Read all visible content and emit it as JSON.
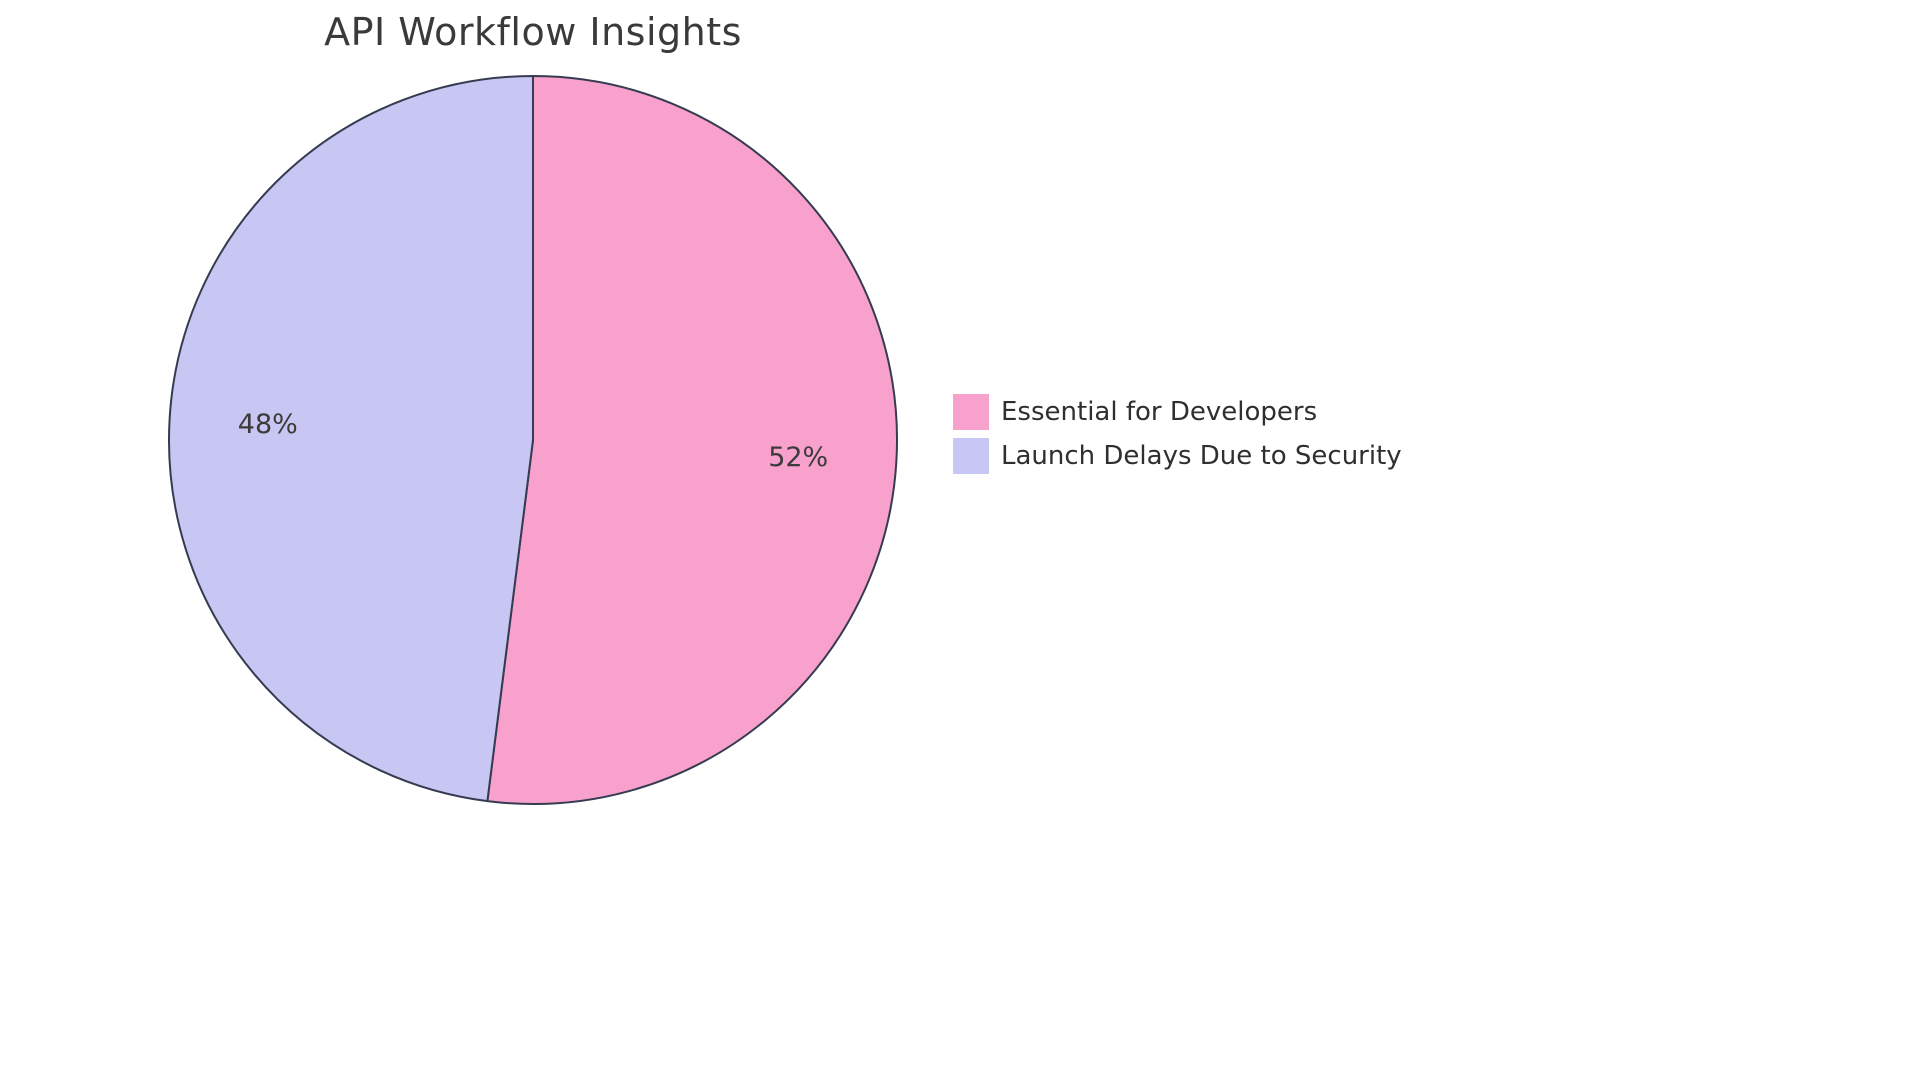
{
  "chart_data": {
    "type": "pie",
    "title": "API Workflow Insights",
    "labels": [
      "Essential for Developers",
      "Launch Delays Due to Security"
    ],
    "values": [
      52,
      48
    ],
    "value_labels": [
      "52%",
      "48%"
    ],
    "colors": [
      "#F9A1CD",
      "#C8C6F3"
    ],
    "border_color": "#353B50",
    "border_width": 2,
    "label_color": "#3b3b3b",
    "label_font_size": 27,
    "label_radius_ratio": 0.73,
    "start_angle_deg": -90,
    "direction": "clockwise",
    "legend_position": "right",
    "center": [
      533,
      440
    ],
    "radius": 364
  }
}
